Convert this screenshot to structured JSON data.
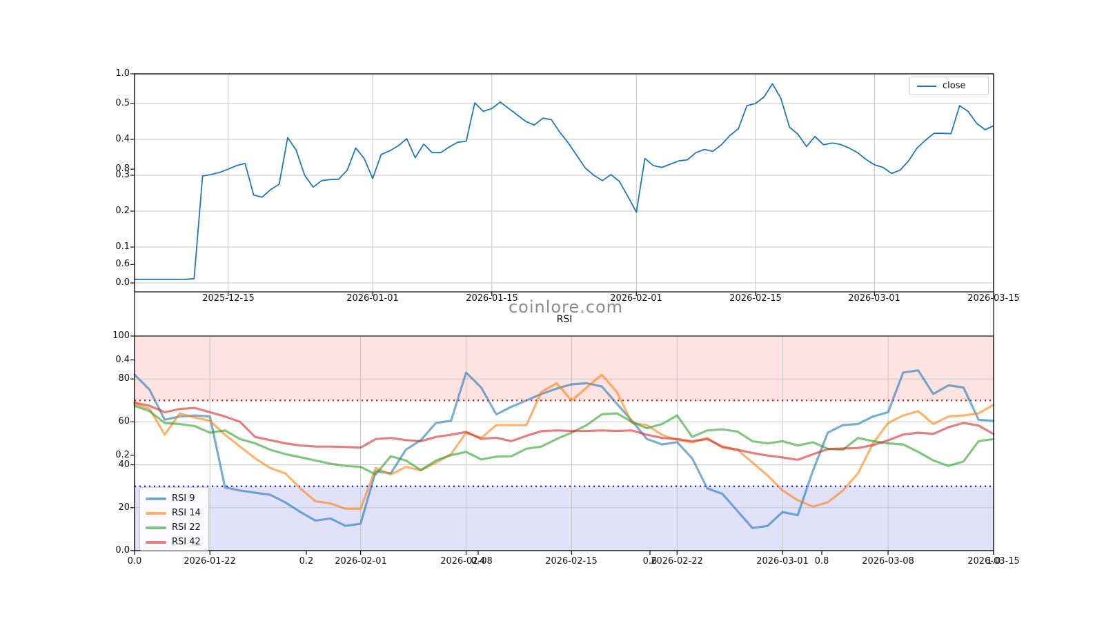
{
  "watermark": "coinlore.com",
  "colors": {
    "overbought_line": "#ff0000",
    "oversold_line": "#0000ff",
    "overbought_band": "rgba(255,0,0,0.11)",
    "oversold_band": "rgba(25,25,215,0.13)",
    "grid": "#c6c6c6",
    "spine": "#1a1a1a",
    "watermark": "#8c8c8c"
  },
  "ghost_axis": {
    "y_tick_labels": [
      "1.0",
      "0.8",
      "0.6",
      "0.4",
      "0.2",
      "0.0"
    ],
    "x_tick_labels": [
      "0.0",
      "0.2",
      "0.4",
      "0.6",
      "0.8",
      "1.0"
    ]
  },
  "chart_data": [
    {
      "type": "line",
      "name": "price",
      "title": "",
      "legend": {
        "position": "upper right",
        "entries": [
          "close"
        ]
      },
      "start_date": "2025-12-04",
      "end_date": "2026-03-15",
      "ylim": [
        -0.026,
        0.583
      ],
      "grid": true,
      "y_ticks": [
        {
          "v": 0.0,
          "label": "0.0"
        },
        {
          "v": 0.1,
          "label": "0.1"
        },
        {
          "v": 0.2,
          "label": "0.2"
        },
        {
          "v": 0.3,
          "label": "0.3"
        },
        {
          "v": 0.4,
          "label": "0.4"
        },
        {
          "v": 0.5,
          "label": "0.5"
        }
      ],
      "x_ticks": [
        {
          "i": 11,
          "label": "2025-12-15"
        },
        {
          "i": 28,
          "label": "2026-01-01"
        },
        {
          "i": 42,
          "label": "2026-01-15"
        },
        {
          "i": 59,
          "label": "2026-02-01"
        },
        {
          "i": 73,
          "label": "2026-02-15"
        },
        {
          "i": 87,
          "label": "2026-03-01"
        },
        {
          "i": 101,
          "label": "2026-03-15"
        }
      ],
      "series": [
        {
          "name": "close",
          "color": "#1f77b4",
          "values": [
            0.01,
            0.01,
            0.01,
            0.01,
            0.01,
            0.01,
            0.01,
            0.012,
            0.298,
            0.302,
            0.308,
            0.317,
            0.327,
            0.333,
            0.245,
            0.239,
            0.26,
            0.275,
            0.405,
            0.37,
            0.3,
            0.267,
            0.285,
            0.288,
            0.289,
            0.314,
            0.376,
            0.347,
            0.291,
            0.358,
            0.368,
            0.382,
            0.402,
            0.349,
            0.387,
            0.363,
            0.363,
            0.379,
            0.392,
            0.395,
            0.502,
            0.478,
            0.486,
            0.504,
            0.486,
            0.468,
            0.45,
            0.44,
            0.459,
            0.455,
            0.42,
            0.39,
            0.355,
            0.32,
            0.3,
            0.285,
            0.302,
            0.283,
            0.241,
            0.197,
            0.347,
            0.327,
            0.322,
            0.331,
            0.34,
            0.343,
            0.363,
            0.372,
            0.367,
            0.385,
            0.411,
            0.43,
            0.494,
            0.5,
            0.518,
            0.555,
            0.514,
            0.434,
            0.414,
            0.38,
            0.408,
            0.385,
            0.39,
            0.386,
            0.376,
            0.363,
            0.344,
            0.329,
            0.322,
            0.305,
            0.314,
            0.34,
            0.376,
            0.398,
            0.417,
            0.417,
            0.416,
            0.494,
            0.478,
            0.445,
            0.427,
            0.438
          ]
        }
      ]
    },
    {
      "type": "line",
      "name": "rsi",
      "title": "RSI",
      "legend": {
        "position": "lower left",
        "entries": [
          "RSI 9",
          "RSI 14",
          "RSI 22",
          "RSI 42"
        ]
      },
      "start_date": "2026-01-17",
      "end_date": "2026-03-15",
      "ylim": [
        0,
        100
      ],
      "grid": true,
      "overbought_level": 70,
      "oversold_level": 30,
      "y_ticks": [
        {
          "v": 0,
          "label": "0"
        },
        {
          "v": 20,
          "label": "20"
        },
        {
          "v": 40,
          "label": "40"
        },
        {
          "v": 60,
          "label": "60"
        },
        {
          "v": 80,
          "label": "80"
        },
        {
          "v": 100,
          "label": "100"
        }
      ],
      "x_ticks": [
        {
          "i": 5,
          "label": "2026-01-22"
        },
        {
          "i": 15,
          "label": "2026-02-01"
        },
        {
          "i": 22,
          "label": "2026-02-08"
        },
        {
          "i": 29,
          "label": "2026-02-15"
        },
        {
          "i": 36,
          "label": "2026-02-22"
        },
        {
          "i": 43,
          "label": "2026-03-01"
        },
        {
          "i": 50,
          "label": "2026-03-08"
        },
        {
          "i": 57,
          "label": "2026-03-15"
        }
      ],
      "series": [
        {
          "name": "RSI 9",
          "color": "rgba(31,119,180,0.6)",
          "values": [
            82,
            75,
            61,
            62.5,
            63,
            62.5,
            29.5,
            28,
            27,
            26,
            22.5,
            18,
            14,
            15,
            11.5,
            12.5,
            37,
            36,
            47,
            51.5,
            59.5,
            60.5,
            83,
            76,
            63.5,
            67,
            70,
            73,
            75.5,
            77.5,
            78,
            76.5,
            68.5,
            60.5,
            52,
            49.5,
            50.5,
            43,
            29,
            26.5,
            18.5,
            10.5,
            11.5,
            18,
            16.5,
            37,
            55,
            58.5,
            59,
            62.5,
            64.5,
            83,
            84,
            73,
            77,
            76,
            61,
            60.5
          ]
        },
        {
          "name": "RSI 14",
          "color": "rgba(255,127,14,0.6)",
          "values": [
            68.5,
            66,
            54,
            64,
            62,
            60.5,
            54,
            48.5,
            43,
            38.5,
            36,
            29,
            23,
            22,
            19.5,
            19.5,
            38.5,
            35.5,
            39,
            37.5,
            41,
            45,
            55,
            52.5,
            58.5,
            58.5,
            58.5,
            74,
            78,
            70,
            76,
            82,
            74,
            59.5,
            58.5,
            54,
            51.5,
            50.5,
            52.5,
            48,
            47,
            41,
            35,
            28,
            23.5,
            20.5,
            22.5,
            28,
            36,
            50,
            59.5,
            63,
            65,
            59,
            62.5,
            63,
            64,
            68
          ]
        },
        {
          "name": "RSI 22",
          "color": "rgba(44,160,44,0.6)",
          "values": [
            67.5,
            65,
            59.5,
            59,
            58,
            55,
            56,
            52,
            50,
            47,
            45,
            43.5,
            42,
            40.5,
            39.5,
            39,
            35.5,
            44,
            42,
            37.5,
            42,
            44.5,
            46,
            42.5,
            43.8,
            44,
            47.5,
            48.5,
            52,
            55,
            58.5,
            63.5,
            64,
            60,
            57,
            59,
            63,
            53,
            56,
            56.5,
            55.5,
            51,
            50,
            51,
            49,
            50.5,
            47.5,
            47,
            52.5,
            51,
            50,
            49.5,
            46,
            42,
            39.5,
            41.5,
            51,
            52
          ]
        },
        {
          "name": "RSI 42",
          "color": "rgba(214,39,40,0.6)",
          "values": [
            69,
            67.5,
            64.5,
            66,
            66.5,
            64.5,
            62.5,
            60,
            53,
            51.5,
            50,
            49,
            48.5,
            48.5,
            48.3,
            48,
            52,
            52.5,
            51.5,
            51,
            53,
            54,
            55.3,
            52.1,
            52.6,
            51,
            53.5,
            55.7,
            56,
            55.8,
            55.8,
            56,
            55.8,
            56,
            54,
            52.5,
            52,
            51,
            52,
            48.5,
            47,
            45.5,
            44.3,
            43.4,
            42.3,
            44.9,
            47.3,
            47.6,
            47.8,
            49.2,
            51.4,
            54.1,
            55,
            54.4,
            57.5,
            59.5,
            58.3,
            54.3
          ]
        }
      ]
    }
  ]
}
